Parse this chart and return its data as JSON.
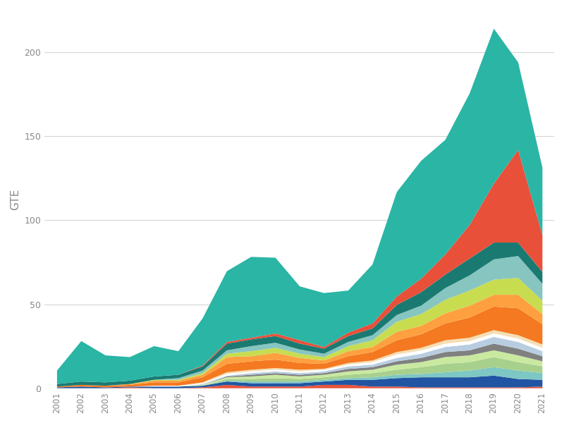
{
  "years": [
    2001,
    2002,
    2003,
    2004,
    2005,
    2006,
    2007,
    2008,
    2009,
    2010,
    2011,
    2012,
    2013,
    2014,
    2015,
    2016,
    2017,
    2018,
    2019,
    2020,
    2021
  ],
  "series": [
    {
      "color": "#f0f0f0",
      "values": [
        0.5,
        0.5,
        0.5,
        0.5,
        0.5,
        0.5,
        0.5,
        0.5,
        0.5,
        0.5,
        0.5,
        0.5,
        0.5,
        0.5,
        0.5,
        0.5,
        0.5,
        0.5,
        0.5,
        0.5,
        0.5
      ]
    },
    {
      "color": "#e8543a",
      "values": [
        0,
        0,
        0,
        0.5,
        0,
        0,
        0.5,
        2,
        1,
        1,
        1,
        2,
        2,
        1,
        1,
        0.5,
        0.5,
        0.5,
        0.5,
        0.5,
        1
      ]
    },
    {
      "color": "#2155a3",
      "values": [
        0.5,
        1,
        0.5,
        0.5,
        1,
        1,
        1,
        2,
        2,
        2,
        2,
        2,
        3,
        4,
        5,
        6,
        6,
        6,
        7,
        5,
        4
      ]
    },
    {
      "color": "#7dc7c4",
      "values": [
        0,
        0,
        0,
        0,
        0,
        0,
        0,
        0.5,
        1,
        1,
        1,
        1,
        1,
        1.5,
        2,
        2,
        3,
        4,
        5,
        5,
        4
      ]
    },
    {
      "color": "#a8d08d",
      "values": [
        0,
        0,
        0,
        0,
        0,
        0,
        0,
        1,
        1.5,
        2,
        1.5,
        1.5,
        2,
        2.5,
        3,
        4,
        5,
        5,
        6,
        5,
        4
      ]
    },
    {
      "color": "#c9e9a0",
      "values": [
        0,
        0,
        0,
        0,
        0,
        0,
        0.5,
        1,
        1.5,
        2,
        1.5,
        1.5,
        2,
        2,
        3,
        3,
        4,
        4,
        4,
        4,
        3
      ]
    },
    {
      "color": "#808080",
      "values": [
        0,
        0,
        0,
        0,
        0,
        0,
        0,
        0.5,
        1,
        1,
        1,
        1,
        1.5,
        1.5,
        2,
        2.5,
        3,
        3,
        4,
        4,
        3
      ]
    },
    {
      "color": "#b8cde0",
      "values": [
        0,
        0,
        0,
        0,
        0,
        0,
        0.5,
        0.5,
        1,
        1,
        1,
        1,
        1.5,
        1.5,
        2,
        2.5,
        3,
        3.5,
        4,
        4,
        3
      ]
    },
    {
      "color": "#ffffff",
      "values": [
        0,
        0,
        0,
        0,
        0.5,
        0.5,
        0.5,
        1,
        1,
        1,
        1,
        1,
        1,
        1.5,
        2,
        2,
        2,
        2,
        2,
        2,
        2
      ]
    },
    {
      "color": "#f5deb3",
      "values": [
        0,
        0,
        0,
        0,
        0,
        0,
        0.5,
        1,
        1,
        1,
        1,
        0.5,
        1,
        1,
        1.5,
        1.5,
        2,
        2,
        2,
        2,
        2
      ]
    },
    {
      "color": "#f47920",
      "values": [
        0.5,
        1,
        1,
        1,
        2,
        2,
        3,
        5,
        5,
        5,
        4,
        3,
        4,
        5,
        7,
        8,
        10,
        12,
        14,
        16,
        12
      ]
    },
    {
      "color": "#ffa040",
      "values": [
        0,
        0,
        0,
        0.5,
        1,
        1,
        1.5,
        4,
        3,
        4,
        3,
        2,
        3,
        3,
        5,
        5,
        6,
        7,
        7,
        8,
        6
      ]
    },
    {
      "color": "#c8dc50",
      "values": [
        0,
        0,
        0,
        0,
        0.5,
        0.5,
        1,
        2,
        3,
        3,
        2.5,
        2,
        3,
        4,
        6,
        7,
        8,
        9,
        9,
        10,
        8
      ]
    },
    {
      "color": "#86c5c0",
      "values": [
        0,
        0,
        0,
        0,
        0,
        1,
        1.5,
        2,
        3,
        3,
        2.5,
        2,
        2.5,
        3,
        4,
        5,
        7,
        9,
        12,
        13,
        10
      ]
    },
    {
      "color": "#1a7a72",
      "values": [
        1.5,
        2,
        2,
        2,
        2,
        2,
        2.5,
        4,
        4,
        4,
        3.5,
        3,
        3.5,
        4,
        6,
        8,
        8,
        10,
        10,
        8,
        7
      ]
    },
    {
      "color": "#e8503a",
      "values": [
        0,
        0,
        0,
        0,
        0,
        0,
        0.5,
        1,
        1,
        1.5,
        2,
        1,
        2,
        3,
        5,
        8,
        12,
        20,
        35,
        55,
        22
      ]
    },
    {
      "color": "#2ab5a5",
      "values": [
        8,
        24,
        16,
        14,
        18,
        14,
        28,
        42,
        48,
        45,
        32,
        32,
        25,
        35,
        62,
        70,
        68,
        78,
        92,
        52,
        40
      ]
    }
  ],
  "ylabel": "GTE",
  "ylim": [
    0,
    225
  ],
  "yticks": [
    0,
    50,
    100,
    150,
    200
  ],
  "xlim": [
    2001,
    2021
  ],
  "background_color": "#ffffff",
  "grid_color": "#d5d5d5",
  "label_color": "#888888"
}
